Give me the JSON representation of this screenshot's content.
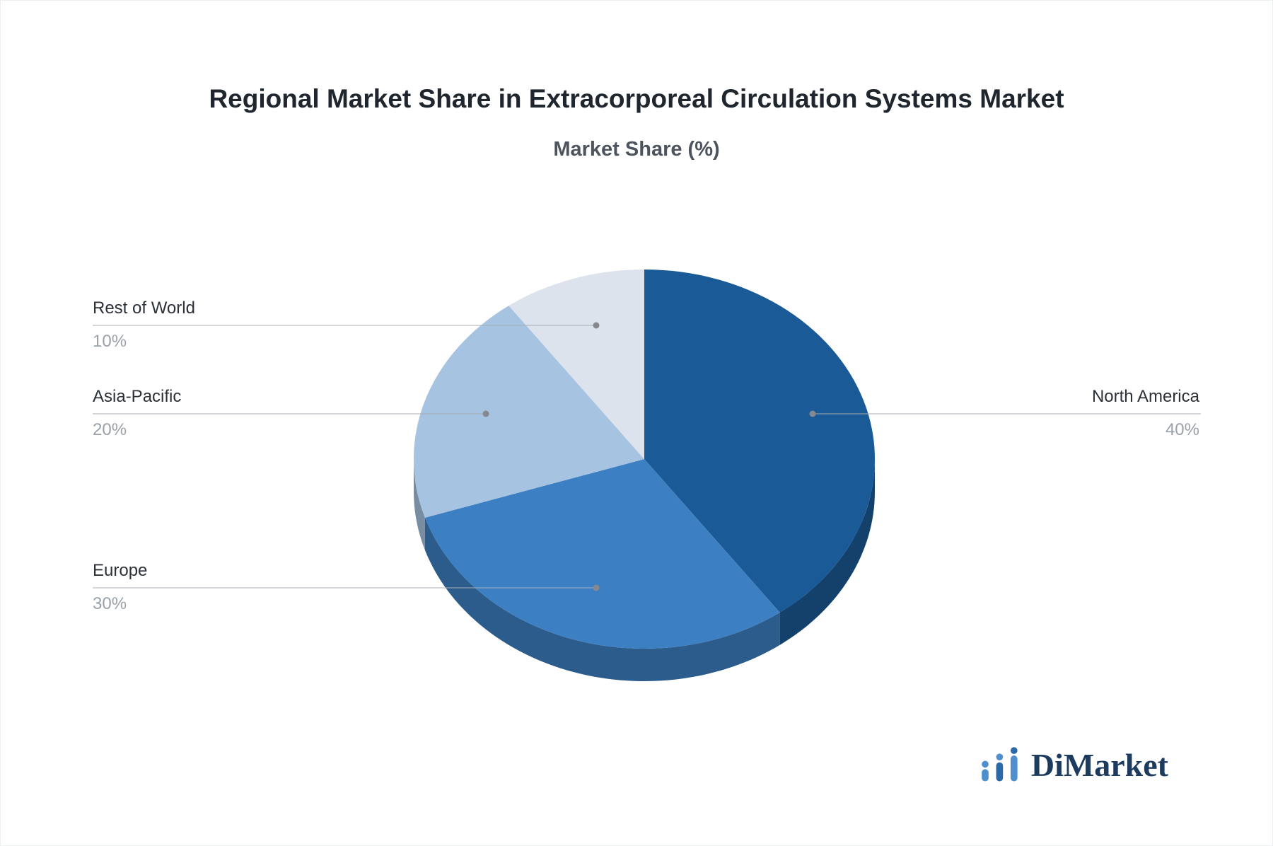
{
  "chart_data": {
    "type": "pie",
    "style": "3d",
    "title": "Regional Market Share in Extracorporeal Circulation Systems Market",
    "subtitle": "Market Share (%)",
    "unit": "%",
    "start_angle": "top",
    "direction": "clockwise",
    "legend": "none",
    "categories": [
      "North America",
      "Europe",
      "Asia-Pacific",
      "Rest of World"
    ],
    "values": [
      40,
      30,
      20,
      10
    ],
    "slices": [
      {
        "name": "North America",
        "value": 40,
        "label": "40%",
        "color": "#1a5a96"
      },
      {
        "name": "Europe",
        "value": 30,
        "label": "30%",
        "color": "#3c80c3"
      },
      {
        "name": "Asia-Pacific",
        "value": 20,
        "label": "20%",
        "color": "#a6c3e1"
      },
      {
        "name": "Rest of World",
        "value": 10,
        "label": "10%",
        "color": "#dde3ed"
      }
    ],
    "colors": {
      "title_text": "#20262e",
      "subtitle_text": "#4d545e",
      "label_text": "#2c3138",
      "percent_text": "#9aa1aa",
      "leader_line": "#a8adb4",
      "leader_dot": "#85898f"
    }
  },
  "brand": {
    "name": "DiMarket",
    "logo_color": "#1d3b5e",
    "icon_blue": "#4f8fce",
    "icon_dark_blue": "#2a69a8"
  }
}
